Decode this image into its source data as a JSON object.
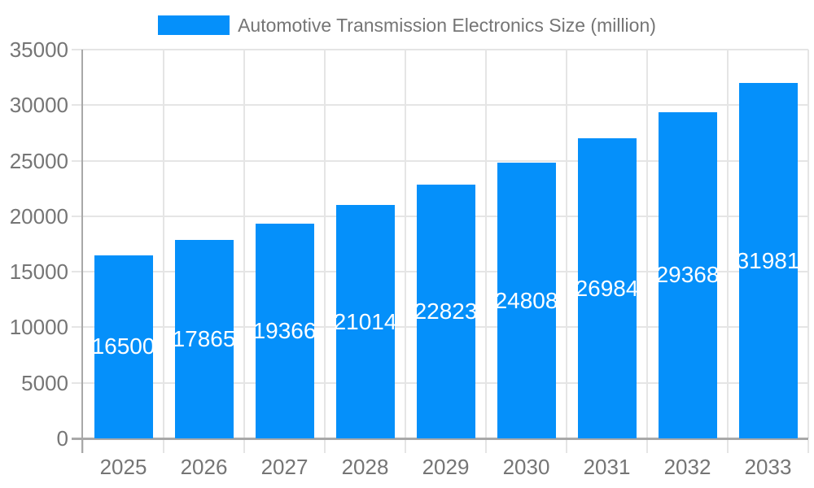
{
  "chart_data": {
    "type": "bar",
    "title": "",
    "legend_label": "Automotive Transmission Electronics Size (million)",
    "legend_position": "top",
    "categories": [
      "2025",
      "2026",
      "2027",
      "2028",
      "2029",
      "2030",
      "2031",
      "2032",
      "2033"
    ],
    "series": [
      {
        "name": "Automotive Transmission Electronics Size (million)",
        "values": [
          16500,
          17865,
          19366,
          21014,
          22823,
          24808,
          26984,
          29368,
          31981
        ]
      }
    ],
    "value_labels_shown": true,
    "xlabel": "",
    "ylabel": "",
    "ylim": [
      0,
      35000
    ],
    "ytick_step": 5000,
    "ytick_labels": [
      "0",
      "5000",
      "10000",
      "15000",
      "20000",
      "25000",
      "30000",
      "35000"
    ],
    "grid": true,
    "grid_vertical": true,
    "colors": {
      "bar": "#0590fa",
      "bar_value_label": "#ffffff",
      "axis_text": "#757575",
      "grid_line": "#e5e5e5",
      "axis_line": "#a8a8a8",
      "background": "#ffffff"
    }
  }
}
